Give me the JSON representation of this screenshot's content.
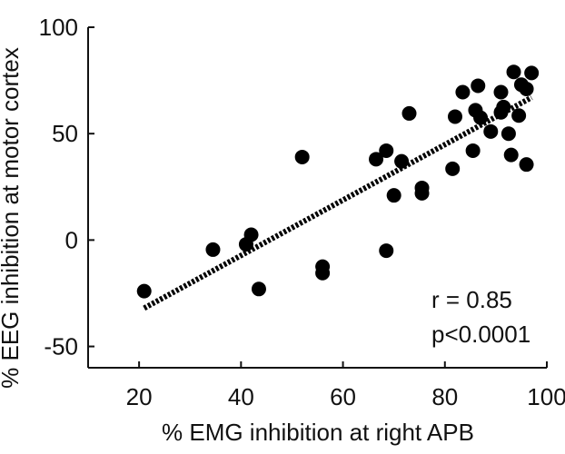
{
  "chart_data": {
    "type": "scatter",
    "xlabel": "% EMG inhibition at right APB",
    "ylabel": "% EEG inhibition at motor cortex",
    "xlim": [
      10,
      100
    ],
    "ylim": [
      -60,
      100
    ],
    "xticks": [
      20,
      40,
      60,
      80,
      100
    ],
    "yticks": [
      -50,
      0,
      50,
      100
    ],
    "grid": false,
    "colors": {
      "points": "#000000",
      "fit_line": "#000000"
    },
    "points": [
      [
        21,
        -24
      ],
      [
        34.5,
        -4.5
      ],
      [
        41,
        -2
      ],
      [
        42,
        2.5
      ],
      [
        43.5,
        -23
      ],
      [
        52,
        39
      ],
      [
        56,
        -12.5
      ],
      [
        56,
        -15.5
      ],
      [
        66.5,
        38
      ],
      [
        68.5,
        42
      ],
      [
        68.5,
        -5
      ],
      [
        70,
        21
      ],
      [
        71.5,
        37
      ],
      [
        73,
        59.5
      ],
      [
        75.5,
        24.5
      ],
      [
        75.5,
        22
      ],
      [
        81.5,
        33.5
      ],
      [
        82,
        58
      ],
      [
        83.5,
        69.5
      ],
      [
        85.5,
        42
      ],
      [
        86,
        61
      ],
      [
        86.5,
        72.5
      ],
      [
        87,
        57.5
      ],
      [
        89,
        51
      ],
      [
        91,
        69.5
      ],
      [
        91,
        60
      ],
      [
        91.5,
        62.5
      ],
      [
        92.5,
        50
      ],
      [
        93,
        40
      ],
      [
        93.5,
        79
      ],
      [
        94.5,
        58.5
      ],
      [
        95,
        73
      ],
      [
        96,
        71
      ],
      [
        96,
        35.5
      ],
      [
        97,
        78.5
      ]
    ],
    "fit": {
      "x": [
        21,
        97
      ],
      "y": [
        -32,
        67
      ]
    },
    "annotations": {
      "r": "r = 0.85",
      "p": "p<0.0001"
    }
  }
}
